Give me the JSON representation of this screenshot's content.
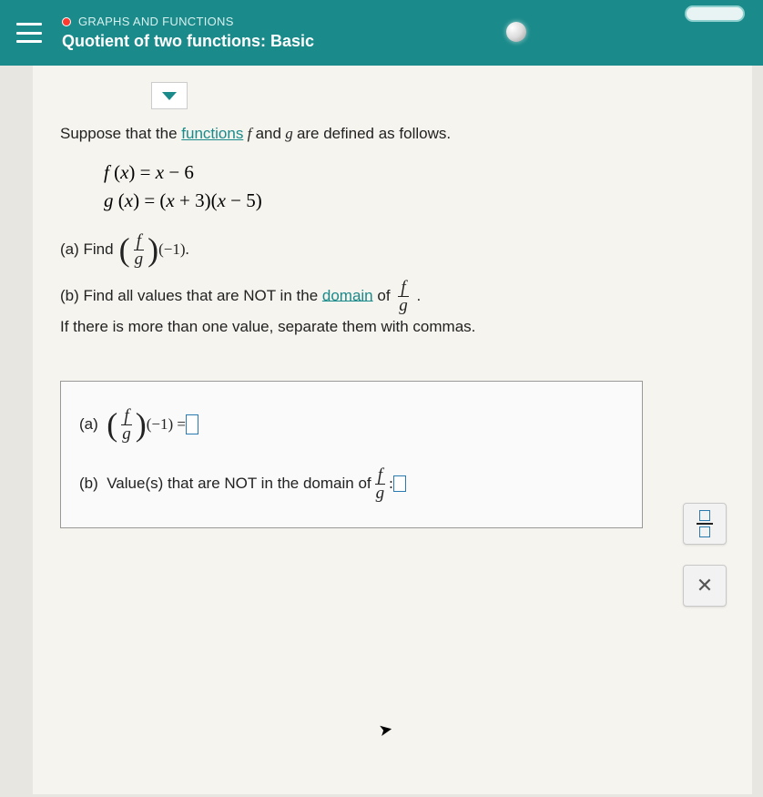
{
  "header": {
    "breadcrumb": "GRAPHS AND FUNCTIONS",
    "title": "Quotient of two functions: Basic"
  },
  "problem": {
    "intro_pre": "Suppose that the ",
    "intro_link": "functions",
    "intro_post": " f and g are defined as follows.",
    "f_def": "f (x) = x − 6",
    "g_def": "g (x) = (x + 3)(x − 5)",
    "part_a_label": "(a) Find",
    "part_a_expr_arg": "(−1).",
    "part_b_pre": "(b) Find all values that are NOT in the ",
    "part_b_link": "domain",
    "part_b_post": " of ",
    "part_b_end": ".",
    "part_b_note": "If there is more than one value, separate them with commas."
  },
  "answers": {
    "a_label": "(a)",
    "a_arg": "(−1) = ",
    "b_label": "(b)",
    "b_text": "Value(s) that are NOT in the domain of ",
    "b_colon": " : "
  },
  "frac": {
    "f": "f",
    "g": "g"
  },
  "tools": {
    "fraction": "fraction-tool",
    "clear": "clear-tool"
  }
}
